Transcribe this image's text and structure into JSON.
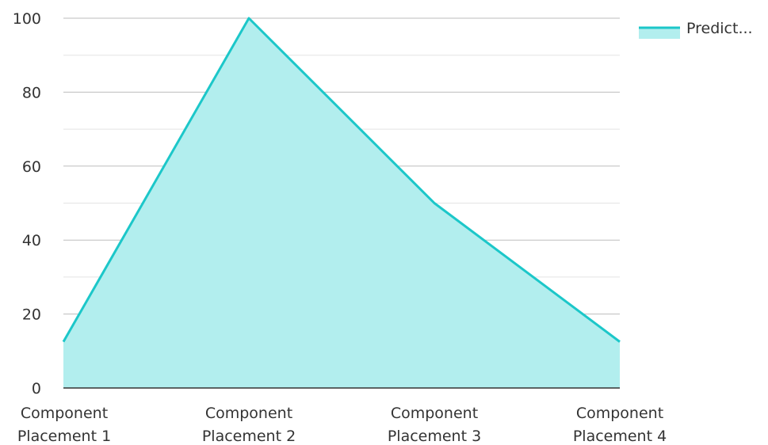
{
  "chart_data": {
    "type": "area",
    "categories": [
      [
        "Component",
        "Placement 1"
      ],
      [
        "Component",
        "Placement 2"
      ],
      [
        "Component",
        "Placement 3"
      ],
      [
        "Component",
        "Placement 4"
      ]
    ],
    "series": [
      {
        "name": "Predict...",
        "values": [
          12.5,
          100,
          50,
          12.5
        ]
      }
    ],
    "yticks": [
      "0",
      "20",
      "40",
      "60",
      "80",
      "100"
    ],
    "ylim": [
      0,
      100
    ],
    "grid": true,
    "legend_position": "top-right",
    "colors": {
      "line": "#1cc7c9",
      "fill": "#b2eeee",
      "grid_major": "#bdbdbd",
      "grid_minor": "#e4e4e4",
      "axis": "#333333"
    }
  }
}
